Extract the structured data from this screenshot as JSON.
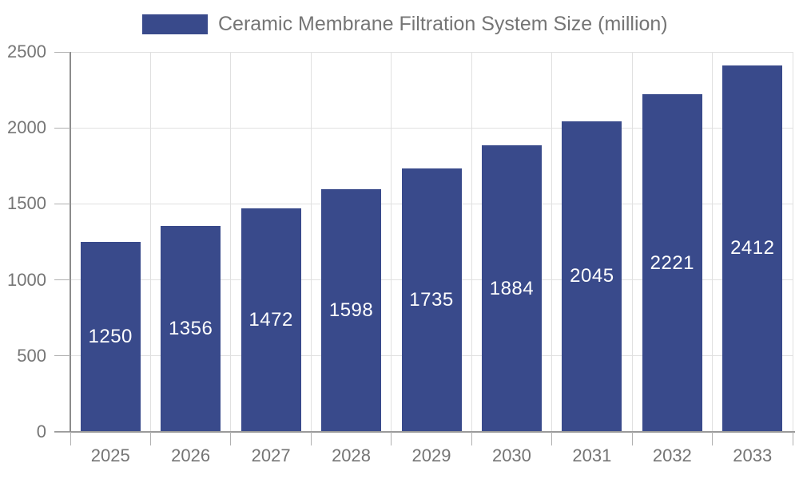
{
  "legend": {
    "label": "Ceramic Membrane Filtration System Size (million)"
  },
  "colors": {
    "bar": "#394A8B",
    "grid": "#e0e0e0",
    "axis": "#9a9a9a",
    "tick": "#b0b0b0",
    "tick_label": "#757575",
    "value_label": "#ffffff"
  },
  "chart_data": {
    "type": "bar",
    "title": "Ceramic Membrane Filtration System Size (million)",
    "series_name": "Ceramic Membrane Filtration System Size (million)",
    "categories": [
      "2025",
      "2026",
      "2027",
      "2028",
      "2029",
      "2030",
      "2031",
      "2032",
      "2033"
    ],
    "values": [
      1250,
      1356,
      1472,
      1598,
      1735,
      1884,
      2045,
      2221,
      2412
    ],
    "xlabel": "",
    "ylabel": "",
    "ylim": [
      0,
      2500
    ],
    "yticks": [
      0,
      500,
      1000,
      1500,
      2000,
      2500
    ],
    "grid": true,
    "legend_position": "top",
    "value_labels": "inside-center"
  }
}
